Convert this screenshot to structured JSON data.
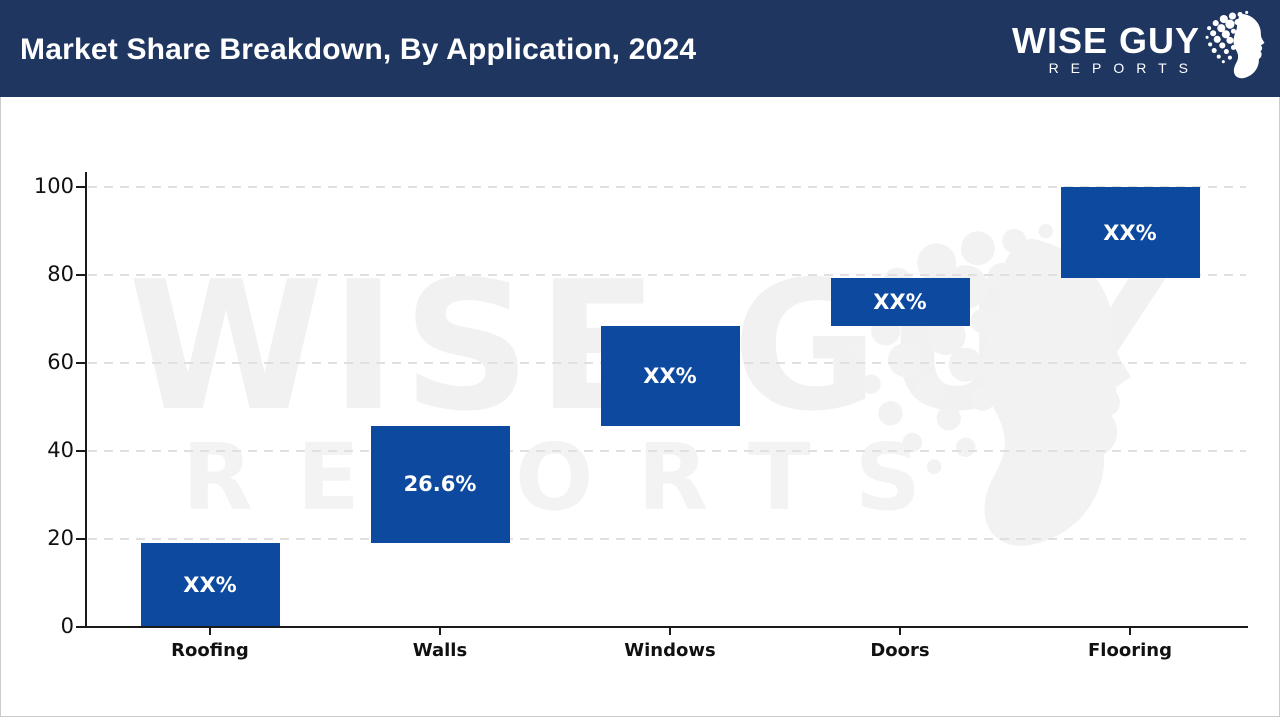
{
  "header": {
    "title": "Market Share Breakdown, By Application, 2024",
    "logo": {
      "line1": "WISE GUY",
      "line2": "REPORTS"
    }
  },
  "watermark": {
    "line1": "WISE GUY",
    "line2": "REPORTS"
  },
  "colors": {
    "header_bg": "#1f3660",
    "bar": "#0d4a9f",
    "axis": "#1a1a1a",
    "grid": "#e0e0e0",
    "watermark": "#f2f2f2",
    "bar_label": "#ffffff"
  },
  "chart_data": {
    "type": "bar",
    "subtype": "floating-waterfall",
    "title": "Market Share Breakdown, By Application, 2024",
    "xlabel": "",
    "ylabel": "",
    "categories": [
      "Roofing",
      "Walls",
      "Windows",
      "Doors",
      "Flooring"
    ],
    "segments": [
      {
        "category": "Roofing",
        "start": 0,
        "end": 19.1,
        "label": "XX%"
      },
      {
        "category": "Walls",
        "start": 19.1,
        "end": 45.7,
        "label": "26.6%"
      },
      {
        "category": "Windows",
        "start": 45.7,
        "end": 68.4,
        "label": "XX%"
      },
      {
        "category": "Doors",
        "start": 68.4,
        "end": 79.3,
        "label": "XX%"
      },
      {
        "category": "Flooring",
        "start": 79.3,
        "end": 100,
        "label": "XX%"
      }
    ],
    "ylim": [
      0,
      100
    ],
    "yticks": [
      0,
      20,
      40,
      60,
      80,
      100
    ],
    "grid": "horizontal-dashed",
    "legend": "none"
  }
}
